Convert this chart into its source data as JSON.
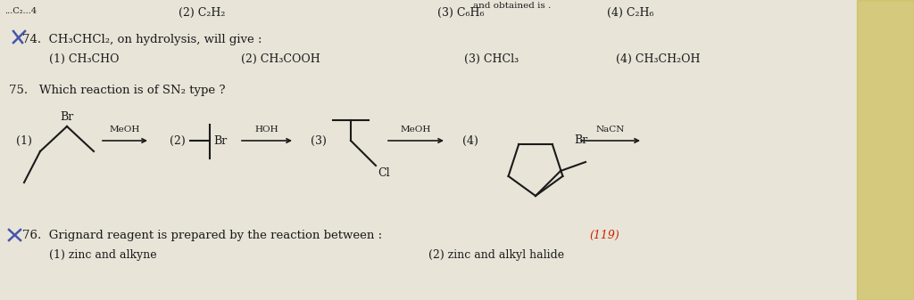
{
  "bg_color": "#e8e4d8",
  "text_color": "#1a1a1a",
  "top_line1": "...C₂...4",
  "top_opts": "(2) C₂H₂                                    (3) C₆H₆                                          (4) C₂H₆",
  "q74_main": "74.  CH₃CHCl₂, on hydrolysis, will give :",
  "q74_opt1": "(1) CH₃CHO",
  "q74_opt2": "(2) CH₃COOH",
  "q74_opt3": "(3) CHCl₃",
  "q74_opt4": "(4) CH₃CH₂OH",
  "q75_main": "75.   Which reaction is of SN₂ type ?",
  "r1_label": "(1)",
  "r1_reagent": "MeOH",
  "r2_label": "(2)",
  "r2_reagent": "HOH",
  "r3_label": "(3)",
  "r3_reagent": "MeOH",
  "r4_label": "(4)",
  "r4_reagent": "NaCN",
  "q76_main": "76.  Grignard reagent is prepared by the reaction between :",
  "q76_opt1": "(1) zinc and alkyne",
  "q76_opt2": "(2) zinc and alkyl halide",
  "red_annot": "(119)",
  "fig_w": 10.24,
  "fig_h": 3.37,
  "dpi": 100
}
